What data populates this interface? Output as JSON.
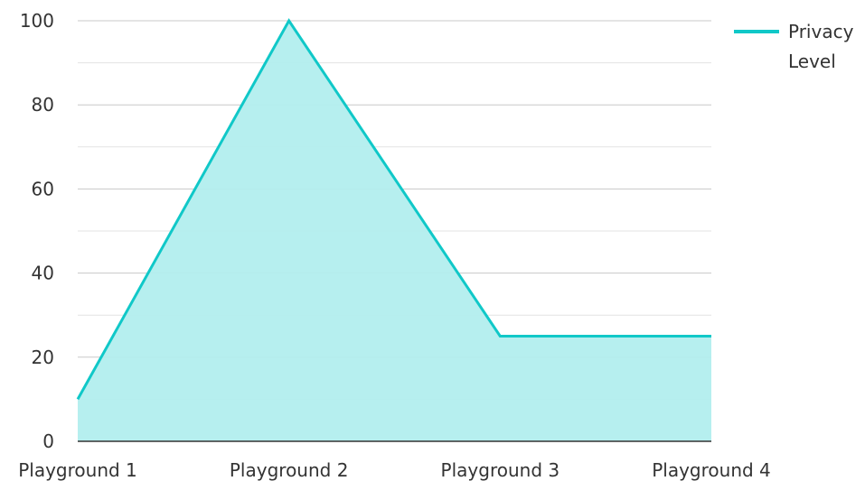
{
  "chart_data": {
    "type": "area",
    "title": "",
    "xlabel": "",
    "ylabel": "",
    "categories": [
      "Playground 1",
      "Playground 2",
      "Playground 3",
      "Playground 4"
    ],
    "series": [
      {
        "name": "Privacy Level",
        "values": [
          10,
          100,
          25,
          25
        ]
      }
    ],
    "ylim": [
      0,
      100
    ],
    "yticks": [
      "0",
      "20",
      "40",
      "60",
      "80",
      "100"
    ],
    "grid": true,
    "legend_position": "top-right",
    "colors": {
      "line": "#10C8C8",
      "fill": "#B2EEEE",
      "grid_major": "#C8C8C8",
      "grid_minor": "#E3E3E3",
      "axis": "#333333"
    }
  },
  "legend": {
    "line1": "Privacy",
    "line2": "Level"
  }
}
